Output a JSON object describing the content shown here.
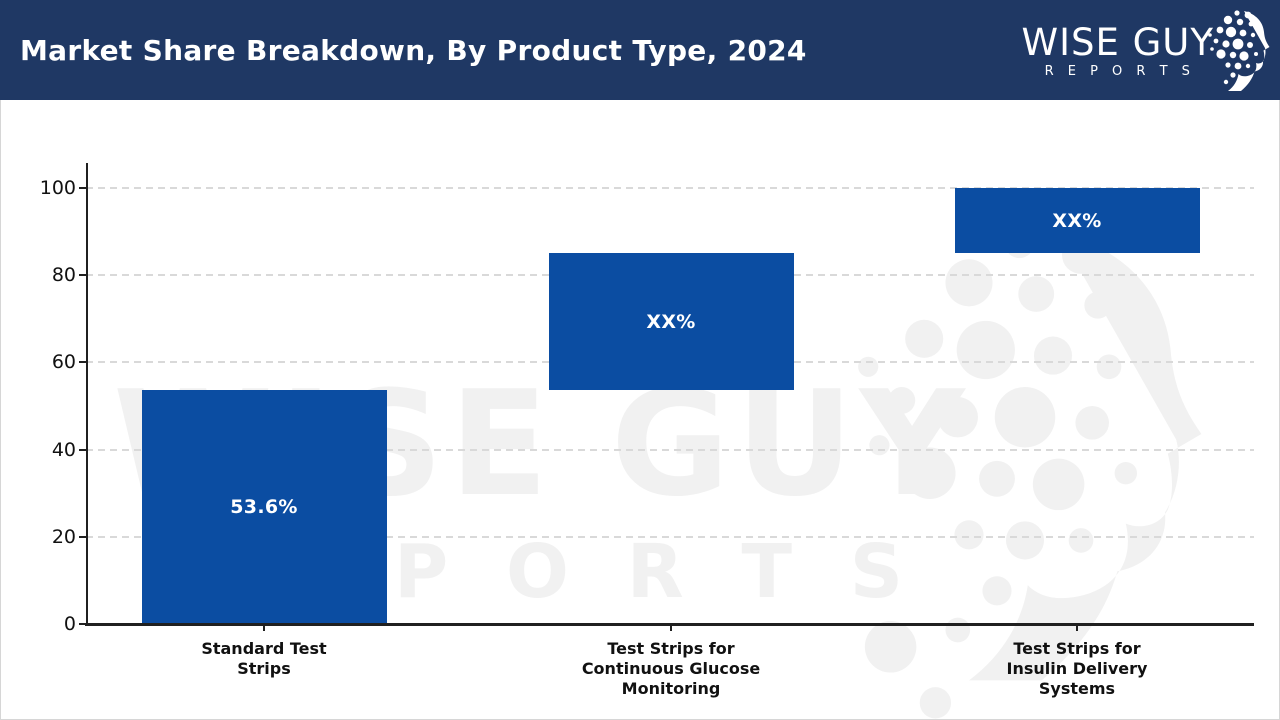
{
  "header": {
    "title": "Market Share Breakdown, By Product Type, 2024",
    "logo": {
      "line1": "WISE GUY",
      "line2": "R E P O R T S"
    }
  },
  "watermark": {
    "line1": "WISE GUY",
    "line2": "R E P O R T S"
  },
  "colors": {
    "header_bg": "#1f3864",
    "page_bg": "#ffffff",
    "bar": "#0b4da2",
    "bar_label": "#ffffff",
    "grid": "#d9d9d9",
    "axis": "#202020",
    "text": "#111111",
    "watermark": "#f1f1f1",
    "logo": "#ffffff",
    "border": "#d6d6d6"
  },
  "chart_data": {
    "type": "bar",
    "variant": "waterfall",
    "title": "Market Share Breakdown, By Product Type, 2024",
    "categories": [
      "Standard Test Strips",
      "Test Strips for Continuous Glucose Monitoring",
      "Test Strips for Insulin Delivery Systems"
    ],
    "category_label_lines": [
      [
        "Standard Test",
        "Strips"
      ],
      [
        "Test Strips for",
        "Continuous Glucose",
        "Monitoring"
      ],
      [
        "Test Strips for",
        "Insulin Delivery",
        "Systems"
      ]
    ],
    "bars": [
      {
        "category": "Standard Test Strips",
        "start": 0,
        "end": 53.6,
        "label": "53.6%"
      },
      {
        "category": "Test Strips for Continuous Glucose Monitoring",
        "start": 53.6,
        "end": 85,
        "label": "XX%"
      },
      {
        "category": "Test Strips for Insulin Delivery Systems",
        "start": 85,
        "end": 100,
        "label": "XX%"
      }
    ],
    "xlabel": "",
    "ylabel": "",
    "ylim": [
      0,
      100
    ],
    "yticks": [
      0,
      20,
      40,
      60,
      80,
      100
    ],
    "legend": "none",
    "grid": "horizontal-dashed"
  }
}
